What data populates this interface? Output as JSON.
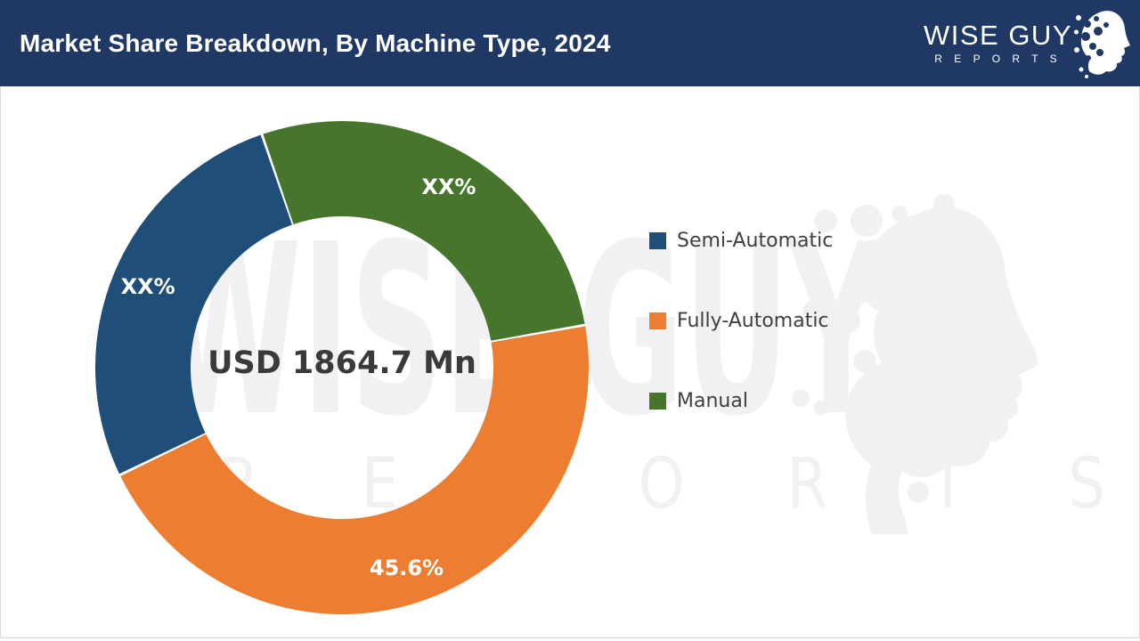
{
  "header": {
    "title": "Market Share Breakdown, By Machine Type, 2024",
    "logo_brand_line1": "WISE GUY",
    "logo_brand_line2": "R E P O R T S"
  },
  "watermark": {
    "line1": "WISE GUY",
    "line2": "R E P O R T S"
  },
  "colors": {
    "header_bg": "#1f3864",
    "watermark": "#f1f1f4",
    "center_text": "#3a3a3a",
    "legend_text": "#3f3f3f",
    "slice_gap": "#ffffff"
  },
  "chart_data": {
    "type": "donut",
    "title": "Market Share Breakdown, By Machine Type, 2024",
    "center_label": "USD 1864.7 Mn",
    "series": [
      {
        "name": "Semi-Automatic",
        "value": 26.9,
        "data_label": "XX%",
        "color": "#1f4e79"
      },
      {
        "name": "Fully-Automatic",
        "value": 45.6,
        "data_label": "45.6%",
        "color": "#ed7d31"
      },
      {
        "name": "Manual",
        "value": 27.5,
        "data_label": "XX%",
        "color": "#47752b"
      }
    ],
    "start_angle_deg": 244.2,
    "clockwise_draw_order": [
      0,
      2,
      1
    ],
    "legend_position": "right"
  }
}
